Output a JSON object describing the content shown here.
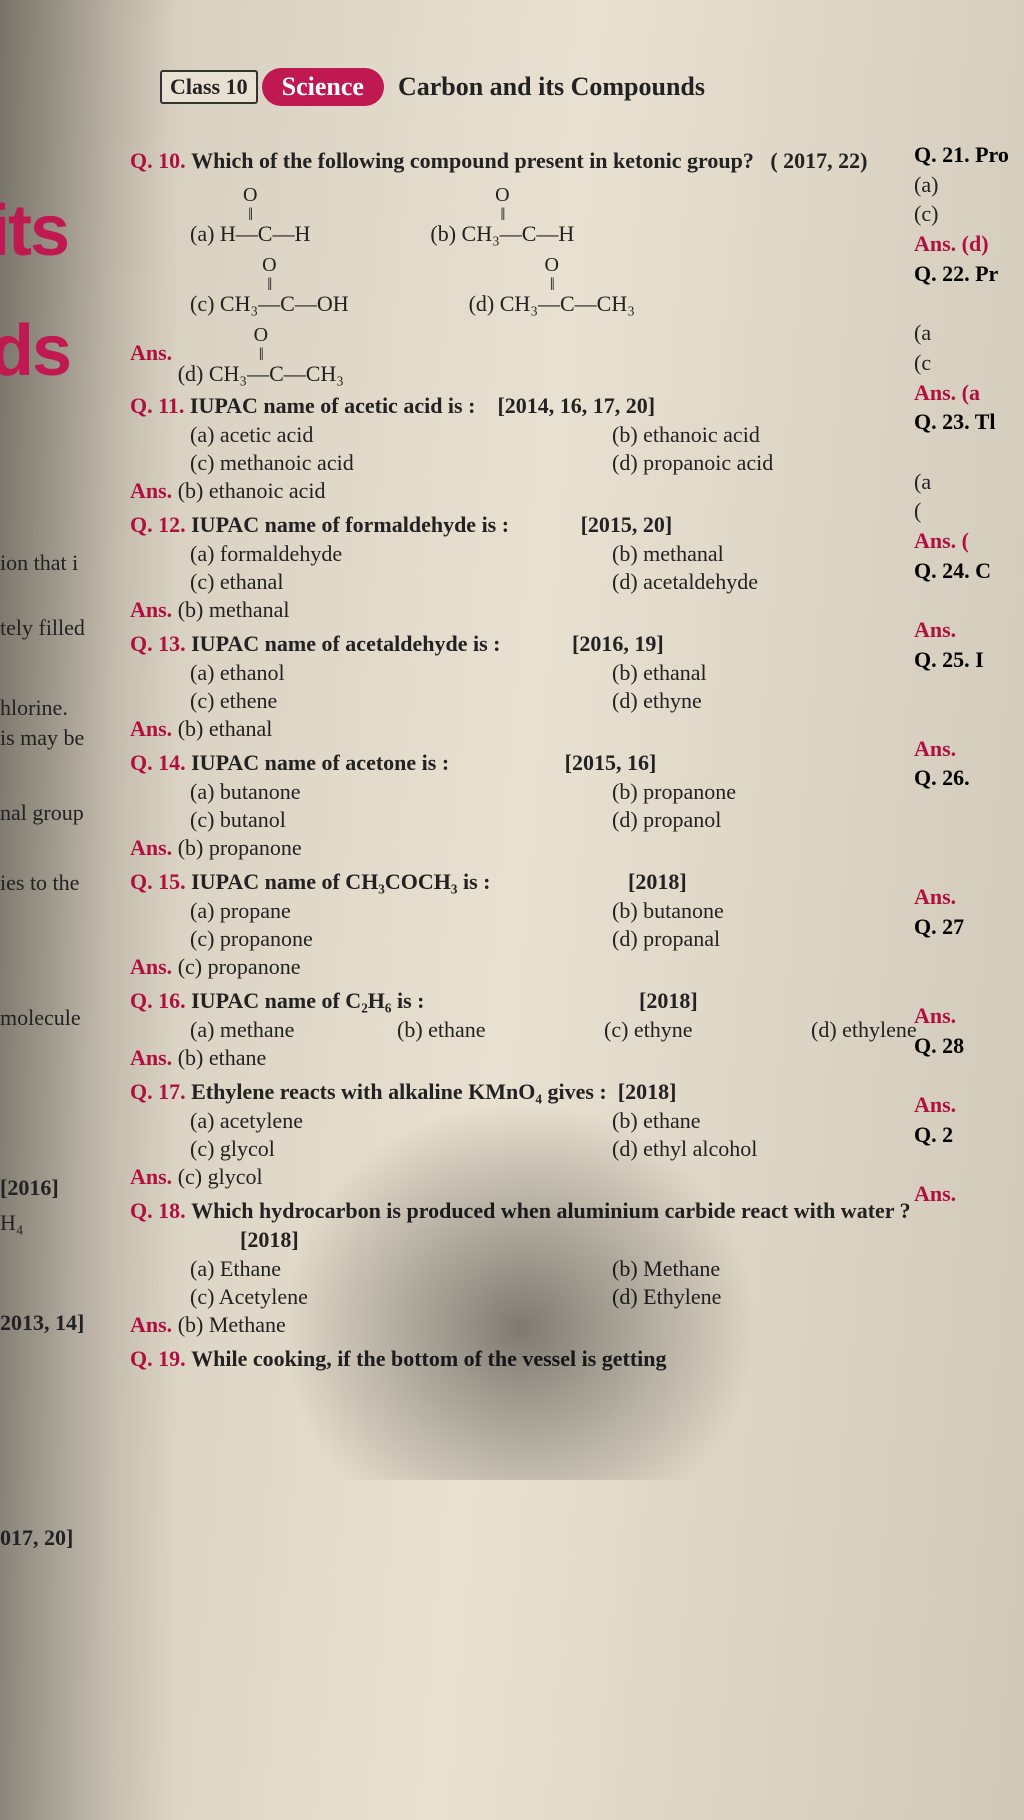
{
  "header": {
    "class_label": "Class 10",
    "subject_pill": "Science",
    "chapter": "Carbon and its Compounds"
  },
  "logos": {
    "its": "its",
    "ds": "ds"
  },
  "left_fragments": {
    "ion_that": "ion that i",
    "tely": "tely filled",
    "hlorine": "hlorine.",
    "may_be": "is may be",
    "nal_group": "nal group",
    "ies_to": "ies to the",
    "molecule": "molecule",
    "y2016": "[2016]",
    "h4": "H₄",
    "y2013": "2013, 14]",
    "y2017": "017, 20]"
  },
  "right_strip": [
    {
      "kind": "q",
      "text": "Q. 21. Pro"
    },
    {
      "kind": "",
      "text": "(a)"
    },
    {
      "kind": "",
      "text": "(c)"
    },
    {
      "kind": "a",
      "text": "Ans.   (d)"
    },
    {
      "kind": "q",
      "text": "Q. 22. Pr"
    },
    {
      "kind": "",
      "text": ""
    },
    {
      "kind": "",
      "text": "(a"
    },
    {
      "kind": "",
      "text": "(c"
    },
    {
      "kind": "a",
      "text": "Ans.   (a"
    },
    {
      "kind": "q",
      "text": "Q. 23. Tl"
    },
    {
      "kind": "",
      "text": ""
    },
    {
      "kind": "",
      "text": "(a"
    },
    {
      "kind": "",
      "text": "("
    },
    {
      "kind": "a",
      "text": "Ans.   ("
    },
    {
      "kind": "q",
      "text": "Q. 24. C"
    },
    {
      "kind": "",
      "text": ""
    },
    {
      "kind": "a",
      "text": "Ans."
    },
    {
      "kind": "q",
      "text": "Q. 25. I"
    },
    {
      "kind": "",
      "text": ""
    },
    {
      "kind": "",
      "text": ""
    },
    {
      "kind": "a",
      "text": "Ans."
    },
    {
      "kind": "q",
      "text": "Q. 26."
    },
    {
      "kind": "",
      "text": ""
    },
    {
      "kind": "",
      "text": ""
    },
    {
      "kind": "",
      "text": ""
    },
    {
      "kind": "a",
      "text": "Ans."
    },
    {
      "kind": "q",
      "text": "Q. 27"
    },
    {
      "kind": "",
      "text": ""
    },
    {
      "kind": "",
      "text": ""
    },
    {
      "kind": "a",
      "text": "Ans."
    },
    {
      "kind": "q",
      "text": "Q. 28"
    },
    {
      "kind": "",
      "text": ""
    },
    {
      "kind": "a",
      "text": "Ans."
    },
    {
      "kind": "q",
      "text": "Q. 2"
    },
    {
      "kind": "",
      "text": ""
    },
    {
      "kind": "a",
      "text": "Ans."
    }
  ],
  "q10": {
    "num": "Q. 10.",
    "text": "Which of the following compound present in ketonic group?",
    "year": "( 2017, 22)",
    "opts": {
      "a": "(a) H—C—H",
      "b": "(b) CH₃—C—H",
      "c": "(c) CH₃—C—OH",
      "d": "(d) CH₃—C—CH₃"
    },
    "ans_label": "Ans.",
    "ans": "(d) CH₃—C—CH₃"
  },
  "q11": {
    "num": "Q. 11.",
    "text": "IUPAC name of acetic acid is :",
    "year": "[2014, 16, 17, 20]",
    "a": "(a) acetic acid",
    "b": "(b) ethanoic acid",
    "c": "(c) methanoic acid",
    "d": "(d) propanoic acid",
    "ans_label": "Ans.",
    "ans": "(b) ethanoic acid"
  },
  "q12": {
    "num": "Q. 12.",
    "text": "IUPAC name of formaldehyde is :",
    "year": "[2015, 20]",
    "a": "(a) formaldehyde",
    "b": "(b) methanal",
    "c": "(c) ethanal",
    "d": "(d) acetaldehyde",
    "ans_label": "Ans.",
    "ans": "(b) methanal"
  },
  "q13": {
    "num": "Q. 13.",
    "text": "IUPAC name of acetaldehyde is :",
    "year": "[2016, 19]",
    "a": "(a) ethanol",
    "b": "(b) ethanal",
    "c": "(c) ethene",
    "d": "(d) ethyne",
    "ans_label": "Ans.",
    "ans": "(b) ethanal"
  },
  "q14": {
    "num": "Q. 14.",
    "text": "IUPAC name of acetone is :",
    "year": "[2015, 16]",
    "a": "(a) butanone",
    "b": "(b) propanone",
    "c": "(c) butanol",
    "d": "(d) propanol",
    "ans_label": "Ans.",
    "ans": "(b) propanone"
  },
  "q15": {
    "num": "Q. 15.",
    "text": "IUPAC name of CH₃COCH₃ is :",
    "year": "[2018]",
    "a": "(a) propane",
    "b": "(b) butanone",
    "c": "(c) propanone",
    "d": "(d) propanal",
    "ans_label": "Ans.",
    "ans": "(c) propanone"
  },
  "q16": {
    "num": "Q. 16.",
    "text": "IUPAC name of C₂H₆ is :",
    "year": "[2018]",
    "a": "(a) methane",
    "b": "(b) ethane",
    "c": "(c) ethyne",
    "d": "(d) ethylene",
    "ans_label": "Ans.",
    "ans": "(b) ethane"
  },
  "q17": {
    "num": "Q. 17.",
    "text": "Ethylene reacts with alkaline KMnO₄ gives :",
    "year": "[2018]",
    "a": "(a) acetylene",
    "b": "(b) ethane",
    "c": "(c) glycol",
    "d": "(d) ethyl alcohol",
    "ans_label": "Ans.",
    "ans": "(c) glycol"
  },
  "q18": {
    "num": "Q. 18.",
    "text": "Which hydrocarbon is produced when aluminium carbide react with water ?",
    "year": "[2018]",
    "a": "(a) Ethane",
    "b": "(b) Methane",
    "c": "(c) Acetylene",
    "d": "(d) Ethylene",
    "ans_label": "Ans.",
    "ans": "(b) Methane"
  },
  "q19": {
    "num": "Q. 19.",
    "text": "While cooking, if the bottom of the vessel is getting"
  }
}
